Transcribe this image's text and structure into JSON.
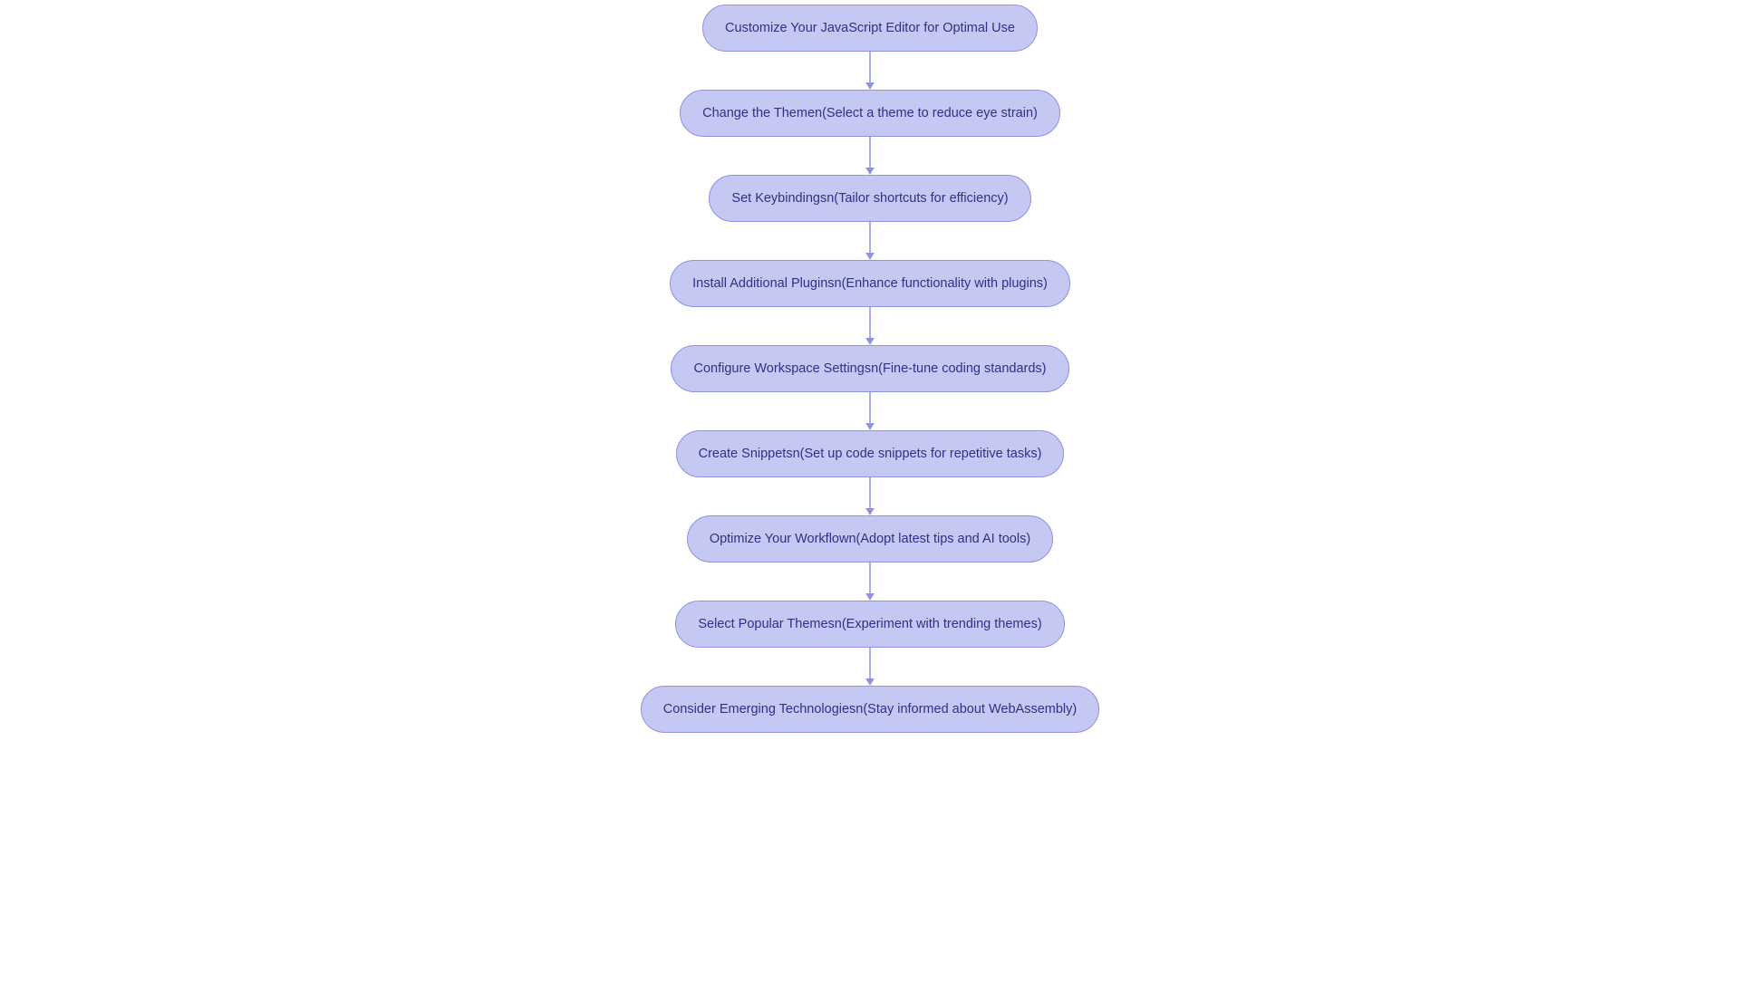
{
  "flowchart": {
    "type": "flowchart",
    "layout": "vertical",
    "background_color": "#ffffff",
    "node_fill": "#c5c8f3",
    "node_stroke": "#8e92e3",
    "node_stroke_width": 1.5,
    "node_text_color": "#2e3187",
    "node_fontsize": 14.5,
    "node_border_radius": 26,
    "arrow_color": "#8e92e3",
    "arrow_width": 1.5,
    "arrowhead_size": 8,
    "vertical_gap": 42,
    "nodes": [
      {
        "id": "n1",
        "label": "Customize Your JavaScript Editor for Optimal Use"
      },
      {
        "id": "n2",
        "label": "Change the Themen(Select a theme to reduce eye strain)"
      },
      {
        "id": "n3",
        "label": "Set Keybindingsn(Tailor shortcuts for efficiency)"
      },
      {
        "id": "n4",
        "label": "Install Additional Pluginsn(Enhance functionality with plugins)"
      },
      {
        "id": "n5",
        "label": "Configure Workspace Settingsn(Fine-tune coding standards)"
      },
      {
        "id": "n6",
        "label": "Create Snippetsn(Set up code snippets for repetitive tasks)"
      },
      {
        "id": "n7",
        "label": "Optimize Your Workflown(Adopt latest tips and AI tools)"
      },
      {
        "id": "n8",
        "label": "Select Popular Themesn(Experiment with trending themes)"
      },
      {
        "id": "n9",
        "label": "Consider Emerging Technologiesn(Stay informed about WebAssembly)"
      }
    ],
    "edges": [
      {
        "from": "n1",
        "to": "n2"
      },
      {
        "from": "n2",
        "to": "n3"
      },
      {
        "from": "n3",
        "to": "n4"
      },
      {
        "from": "n4",
        "to": "n5"
      },
      {
        "from": "n5",
        "to": "n6"
      },
      {
        "from": "n6",
        "to": "n7"
      },
      {
        "from": "n7",
        "to": "n8"
      },
      {
        "from": "n8",
        "to": "n9"
      }
    ]
  }
}
